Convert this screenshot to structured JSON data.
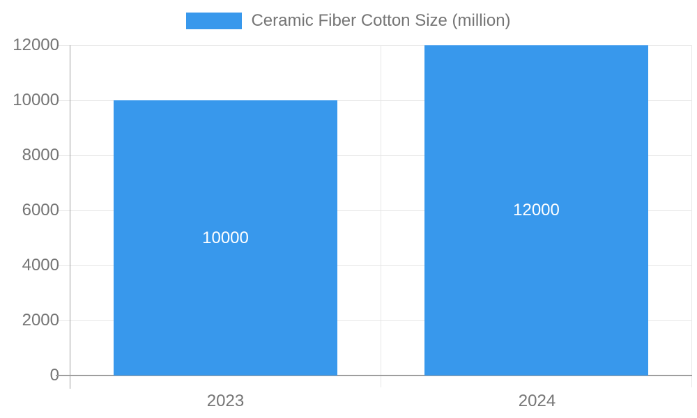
{
  "colors": {
    "bar": "#3898ec",
    "grid": "#e6e6e6",
    "axis": "#9e9e9e",
    "text": "#757575",
    "value_label": "#ffffff",
    "background": "#ffffff"
  },
  "legend": {
    "label": "Ceramic Fiber Cotton Size (million)",
    "position": "top",
    "swatch": "blue-rect"
  },
  "chart_data": {
    "type": "bar",
    "title": "",
    "legend": "Ceramic Fiber Cotton Size (million)",
    "legend_position": "top",
    "categories": [
      "2023",
      "2024"
    ],
    "values": [
      10000,
      12000
    ],
    "bar_labels": [
      "10000",
      "12000"
    ],
    "xlabel": "",
    "ylabel": "",
    "ylim": [
      0,
      12000
    ],
    "ytick_step": 2000,
    "yticks": [
      0,
      2000,
      4000,
      6000,
      8000,
      10000,
      12000
    ],
    "grid": true
  }
}
